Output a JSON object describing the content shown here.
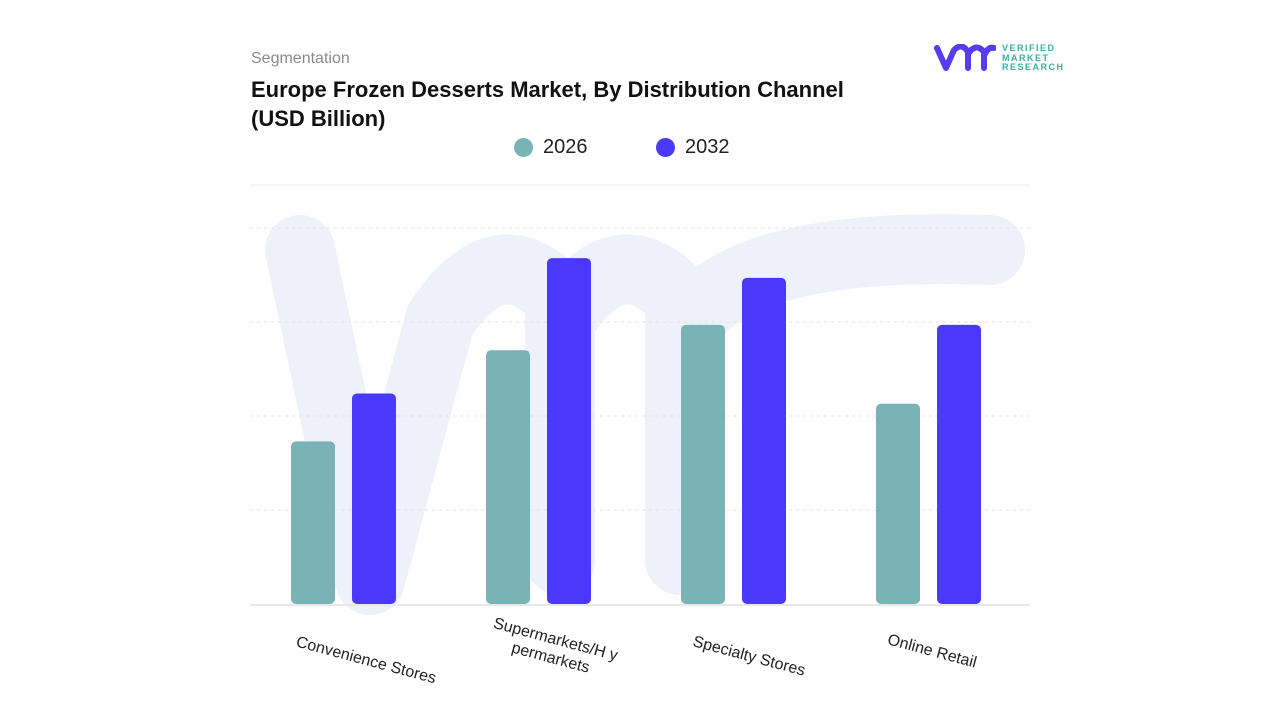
{
  "header": {
    "segment_label": "Segmentation",
    "title": "Europe Frozen Desserts Market, By Distribution Channel (USD Billion)"
  },
  "logo": {
    "brand_text": "VERIFIED MARKET RESEARCH",
    "line1": "VERIFIED",
    "line2": "MARKET",
    "line3": "RESEARCH"
  },
  "colors": {
    "series_2026": "#7ab3b6",
    "series_2032": "#4b39fb",
    "watermark": "#eef1fa",
    "grid": "#e3e3e3"
  },
  "chart_data": {
    "type": "bar",
    "title": "Europe Frozen Desserts Market, By Distribution Channel (USD Billion)",
    "categories": [
      "Convenience Stores",
      "Supermarkets/H ypermarkets",
      "Specialty Stores",
      "Online Retail"
    ],
    "series": [
      {
        "name": "2026",
        "values": [
          1.73,
          2.7,
          2.97,
          2.13
        ]
      },
      {
        "name": "2032",
        "values": [
          2.24,
          3.68,
          3.47,
          2.97
        ]
      }
    ],
    "ylim": [
      0,
      4
    ],
    "y_tick_labels_shown": false,
    "grid": true,
    "legend_position": "top-center",
    "xlabel": "",
    "ylabel": ""
  }
}
